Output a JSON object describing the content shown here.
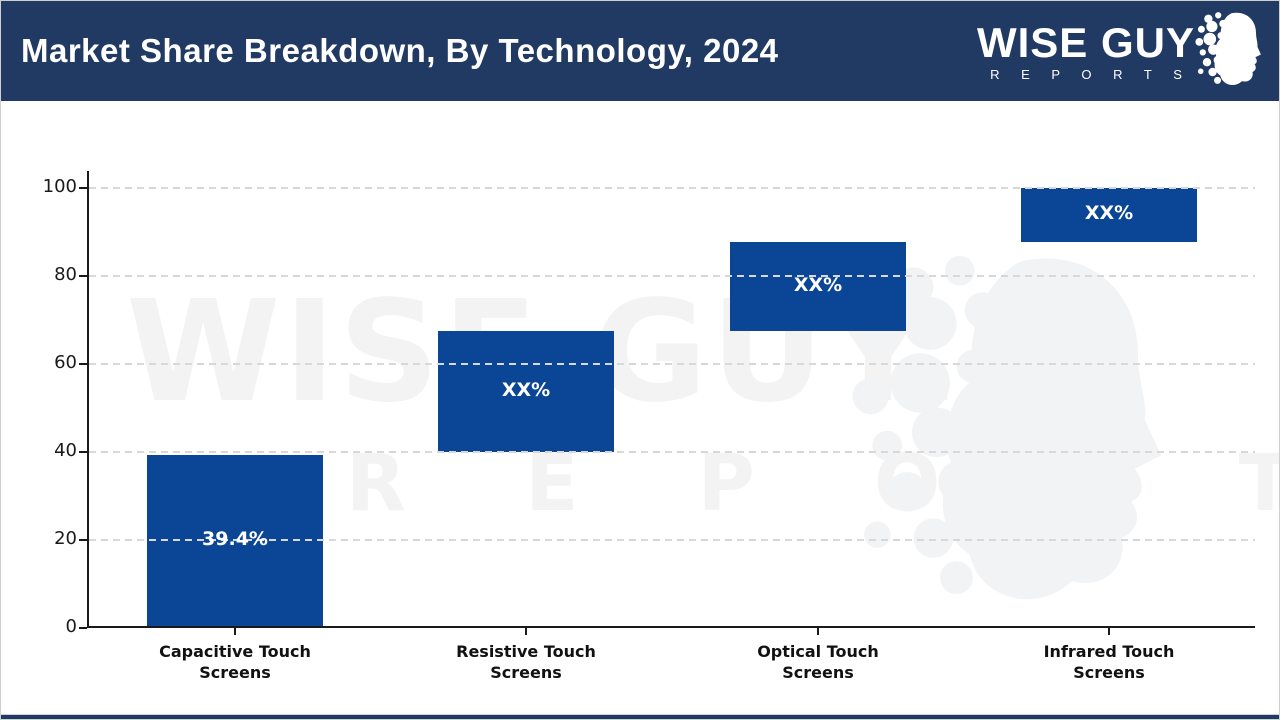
{
  "header": {
    "title": "Market Share Breakdown, By Technology, 2024",
    "bg_color": "#213a63",
    "logo": {
      "line1": "WISE GUY",
      "line2": "R E P O R T S"
    }
  },
  "watermark": {
    "line1": "WISE GUY.",
    "line2": "R E P O R T S"
  },
  "colors": {
    "header_bg": "#213a63",
    "bar": "#0b4596",
    "grid": "#d8d8d8",
    "axis": "#1a1a1a",
    "watermark": "#f3f3f4",
    "bar_label_text": "#ffffff"
  },
  "chart_data": {
    "type": "bar",
    "variant": "floating-waterfall",
    "title": "Market Share Breakdown, By Technology, 2024",
    "categories": [
      "Capacitive Touch Screens",
      "Resistive Touch Screens",
      "Optical Touch Screens",
      "Infrared Touch Screens"
    ],
    "category_lines": [
      [
        "Capacitive Touch",
        "Screens"
      ],
      [
        "Resistive Touch",
        "Screens"
      ],
      [
        "Optical Touch",
        "Screens"
      ],
      [
        "Infrared Touch",
        "Screens"
      ]
    ],
    "bars": [
      {
        "start": 0,
        "end": 39.4,
        "label": "39.4%"
      },
      {
        "start": 40,
        "end": 67.5,
        "label": "XX%"
      },
      {
        "start": 67.5,
        "end": 87.7,
        "label": "XX%"
      },
      {
        "start": 87.7,
        "end": 100,
        "label": "XX%"
      }
    ],
    "values": [
      39.4,
      27.5,
      20.2,
      12.3
    ],
    "xlabel": "",
    "ylabel": "",
    "ylim": [
      0,
      100
    ],
    "yticks": [
      0,
      20,
      40,
      60,
      80,
      100
    ],
    "grid": "dashed-horizontal",
    "legend": "none",
    "bar_color": "#0b4596"
  }
}
